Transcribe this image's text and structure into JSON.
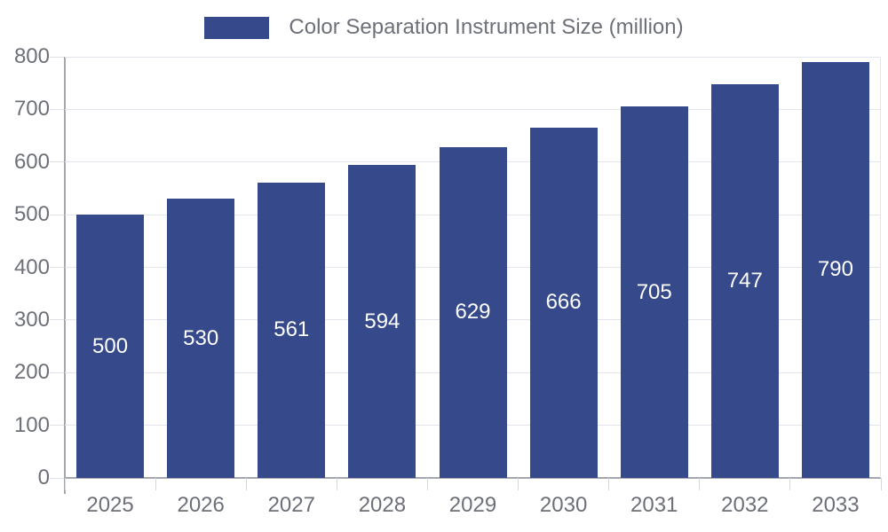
{
  "chart_data": {
    "type": "bar",
    "title": "Color Separation Instrument Size (million)",
    "legend": {
      "label": "Color Separation Instrument Size (million)",
      "position": "top-center"
    },
    "categories": [
      "2025",
      "2026",
      "2027",
      "2028",
      "2029",
      "2030",
      "2031",
      "2032",
      "2033"
    ],
    "values": [
      500,
      530,
      561,
      594,
      629,
      666,
      705,
      747,
      790
    ],
    "series_name": "Color Separation Instrument Size (million)",
    "xlabel": "",
    "ylabel": "",
    "ylim": [
      0,
      800
    ],
    "ytick_step": 100,
    "ytick_labels": [
      "0",
      "100",
      "200",
      "300",
      "400",
      "500",
      "600",
      "700",
      "800"
    ],
    "grid": true,
    "value_labels": "inside-center, white",
    "colors": {
      "bar": "#364a8b",
      "bar_value_label": "#ffffff",
      "axis_text": "#6e7079",
      "legend_text": "#6e7079",
      "gridline": "#e2e5ee",
      "axis_line": "#a4a7ad",
      "background": "#ffffff"
    }
  }
}
